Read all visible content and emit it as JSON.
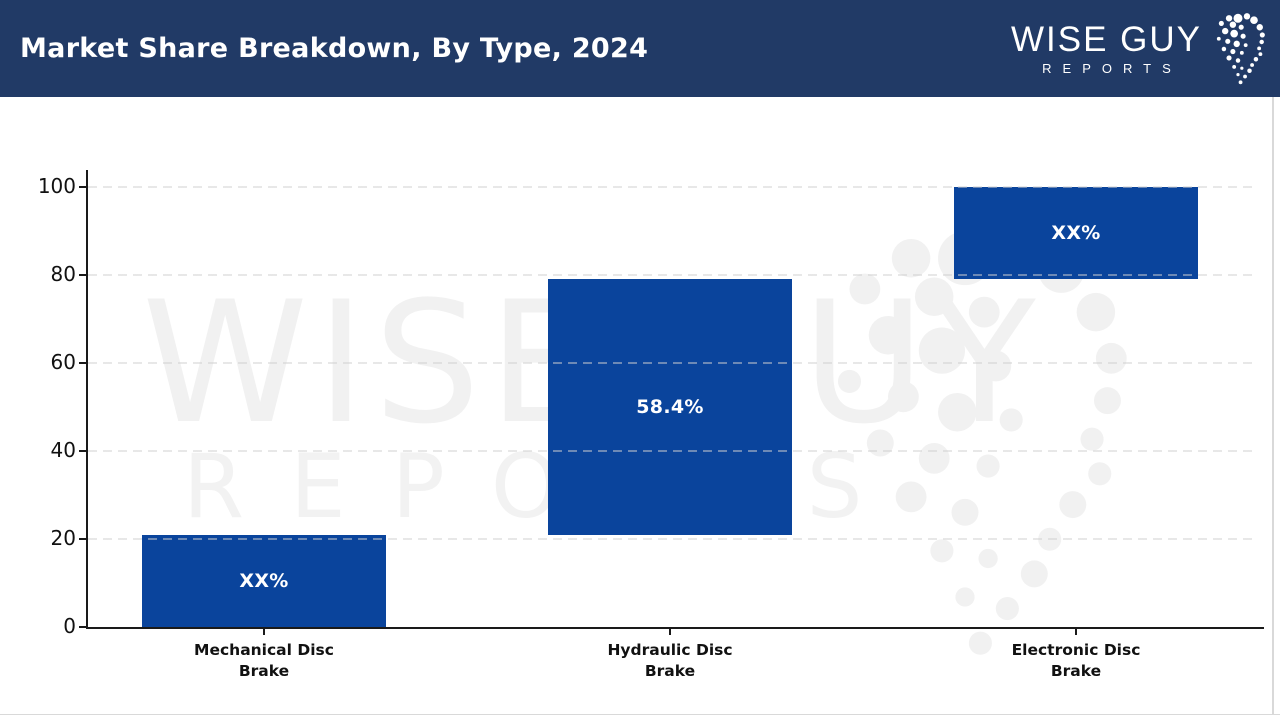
{
  "header": {
    "title": "Market Share Breakdown, By Type, 2024",
    "bg_color": "#213a66",
    "title_color": "#ffffff",
    "logo": {
      "line1": "WISE GUY",
      "line2": "REPORTS"
    }
  },
  "watermark": {
    "line1": "WISE GUY",
    "line2": "REPORTS"
  },
  "chart_data": {
    "type": "bar",
    "variant": "floating-stacked-segments",
    "title": "Market Share Breakdown, By Type, 2024",
    "categories": [
      "Mechanical Disc Brake",
      "Hydraulic Disc Brake",
      "Electronic Disc Brake"
    ],
    "category_label_lines": [
      [
        "Mechanical Disc",
        "Brake"
      ],
      [
        "Hydraulic Disc",
        "Brake"
      ],
      [
        "Electronic Disc",
        "Brake"
      ]
    ],
    "segments": [
      {
        "category": "Mechanical Disc Brake",
        "start": 0,
        "end": 20.8,
        "label": "XX%"
      },
      {
        "category": "Hydraulic Disc Brake",
        "start": 20.8,
        "end": 79.2,
        "label": "58.4%"
      },
      {
        "category": "Electronic Disc Brake",
        "start": 79.2,
        "end": 100,
        "label": "XX%"
      }
    ],
    "ylim": [
      0,
      100
    ],
    "yticks": [
      0,
      20,
      40,
      60,
      80,
      100
    ],
    "xlabel": "",
    "ylabel": "",
    "legend": "none",
    "grid": "horizontal dashed, drawn over bars",
    "style": {
      "bar_color": "#0a449c",
      "bar_label_color": "#ffffff",
      "grid_color_rgba": "rgba(208,208,208,0.5)",
      "axis_color": "#1a1a1a",
      "tick_label_color": "#111111"
    }
  }
}
